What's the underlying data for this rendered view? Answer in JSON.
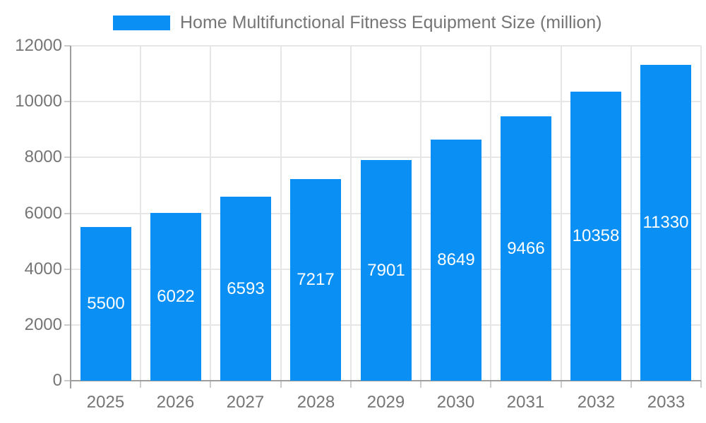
{
  "legend": {
    "label": "Home Multifunctional Fitness Equipment Size (million)"
  },
  "chart_data": {
    "type": "bar",
    "title": "Home Multifunctional Fitness Equipment Size (million)",
    "categories": [
      "2025",
      "2026",
      "2027",
      "2028",
      "2029",
      "2030",
      "2031",
      "2032",
      "2033"
    ],
    "values": [
      5500,
      6022,
      6593,
      7217,
      7901,
      8649,
      9466,
      10358,
      11330
    ],
    "xlabel": "",
    "ylabel": "",
    "ylim": [
      0,
      12000
    ],
    "yticks": [
      0,
      2000,
      4000,
      6000,
      8000,
      10000,
      12000
    ],
    "grid": true,
    "legend_position": "top",
    "value_labels": "inside-center"
  },
  "colors": {
    "bar": "#0a8ff4",
    "background": "#ffffff",
    "axis_line": "#9e9e9e",
    "gridline": "#e6e6e6",
    "tick": "#cccccc",
    "axis_text": "#757575",
    "value_text": "#ffffff"
  }
}
